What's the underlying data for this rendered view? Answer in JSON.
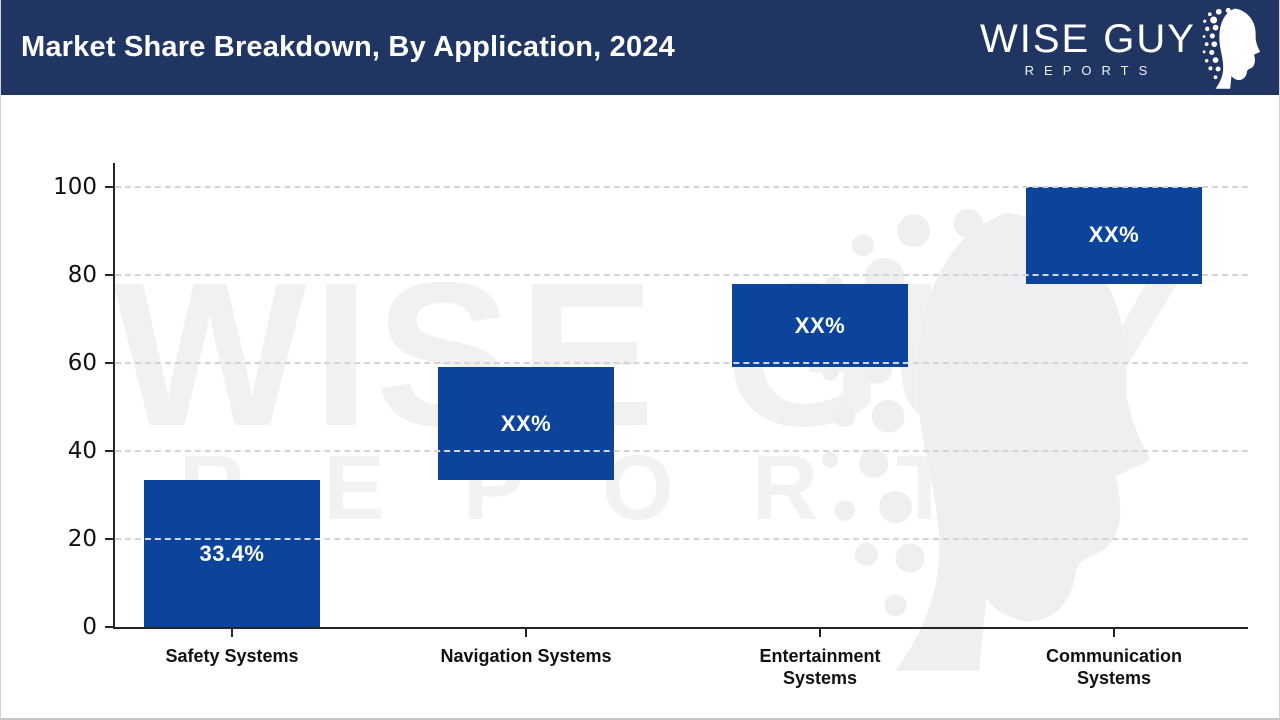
{
  "header": {
    "title": "Market Share Breakdown, By Application, 2024",
    "bg_color": "#203561",
    "logo": {
      "name_line": "WISE GUY",
      "sub_line": "REPORTS"
    }
  },
  "watermark": {
    "line1": "WISE GUY",
    "line2": "REPORTS"
  },
  "chart_data": {
    "type": "bar",
    "variant": "floating-waterfall",
    "title": "Market Share Breakdown, By Application, 2024",
    "categories": [
      "Safety Systems",
      "Navigation Systems",
      "Entertainment Systems",
      "Communication Systems"
    ],
    "category_label_lines": [
      [
        "Safety Systems"
      ],
      [
        "Navigation Systems"
      ],
      [
        "Entertainment",
        "Systems"
      ],
      [
        "Communication",
        "Systems"
      ]
    ],
    "segments": [
      [
        0,
        33.4
      ],
      [
        33.4,
        59
      ],
      [
        59,
        78
      ],
      [
        78,
        100
      ]
    ],
    "values_pct": [
      33.4,
      25.6,
      19,
      22
    ],
    "bar_labels": [
      "33.4%",
      "XX%",
      "XX%",
      "XX%"
    ],
    "xlabel": "",
    "ylabel": "",
    "ylim": [
      0,
      100
    ],
    "yticks": [
      0,
      20,
      40,
      60,
      80,
      100
    ],
    "grid": "horizontal-dashed",
    "legend": "none",
    "bar_color": "#0c449c",
    "axis_color": "#262626",
    "gridline_color": "#d4d4d4",
    "label_color": "#ffffff"
  }
}
